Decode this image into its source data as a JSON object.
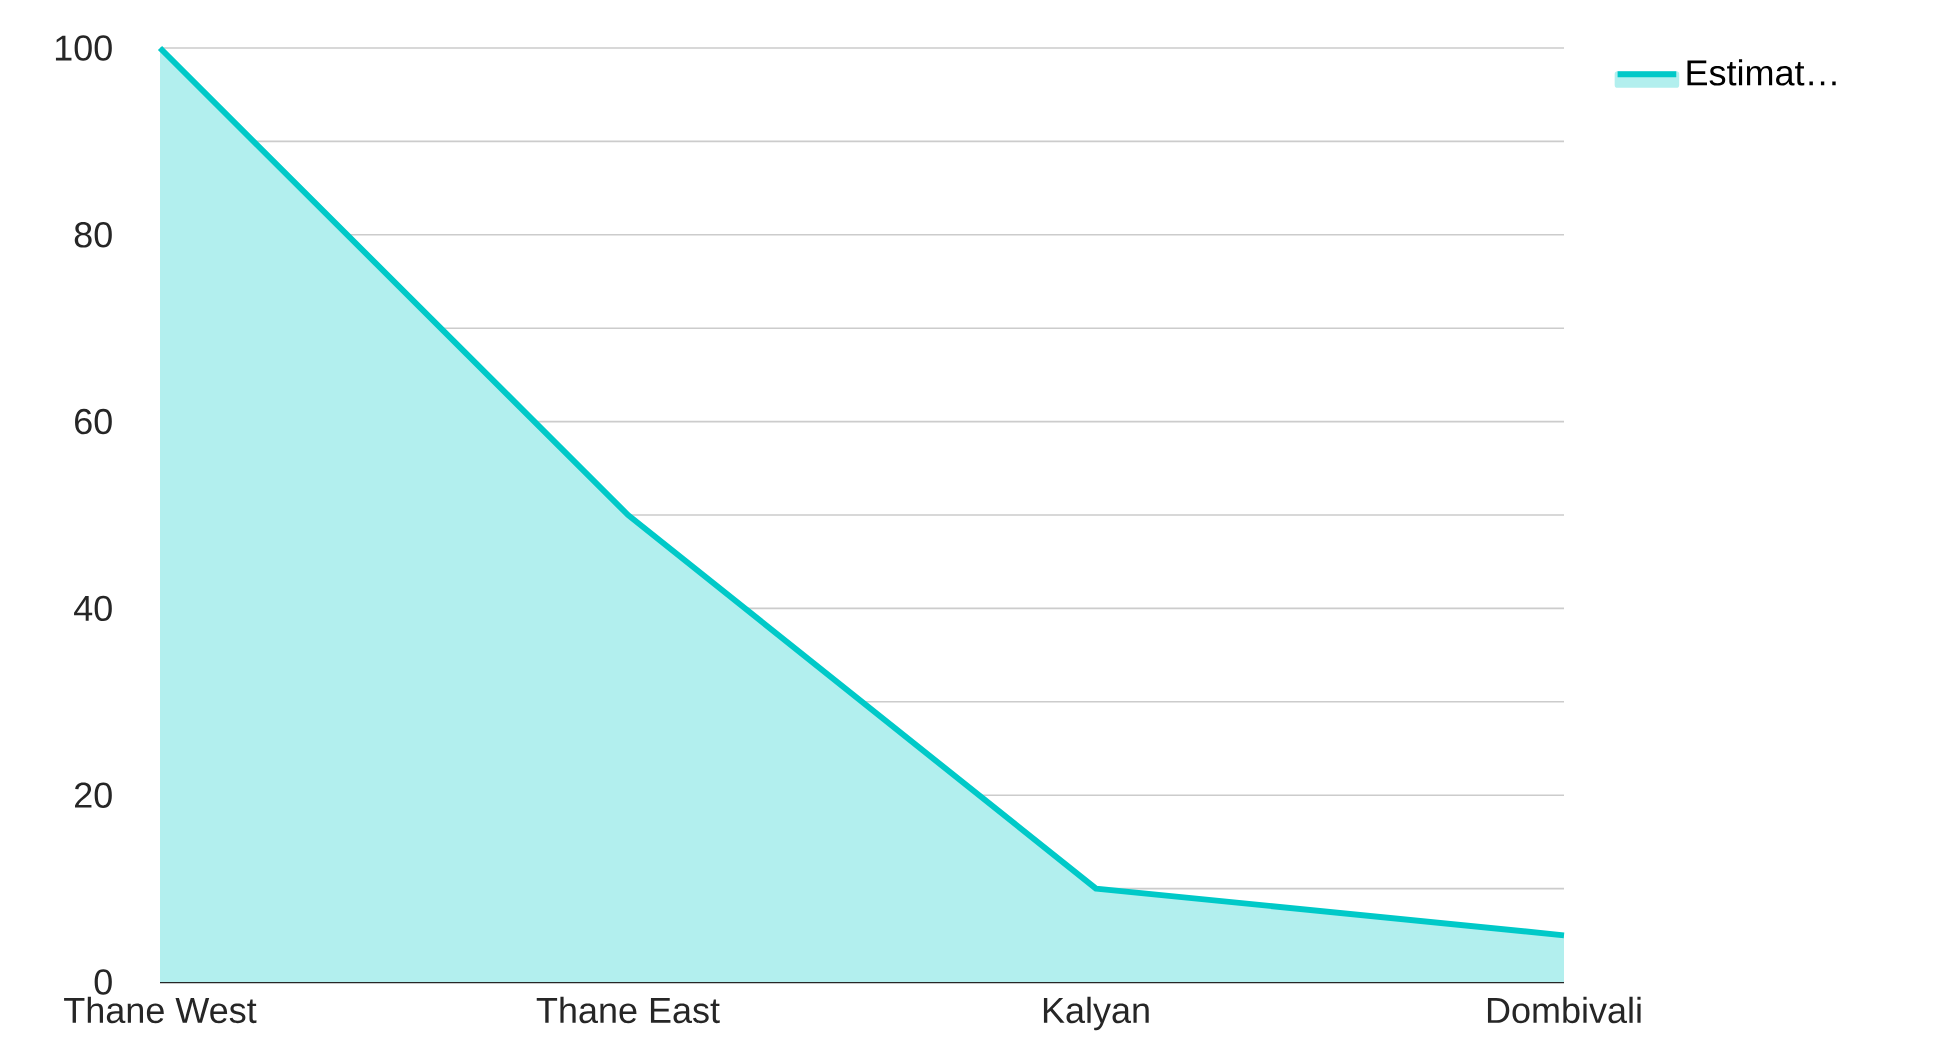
{
  "chart_data": {
    "type": "area",
    "categories": [
      "Thane West",
      "Thane East",
      "Kalyan",
      "Dombivali"
    ],
    "series": [
      {
        "name": "Estimat…",
        "color": "#00c9c8",
        "values": [
          100,
          50,
          10,
          5
        ]
      }
    ],
    "ylim": [
      0,
      100
    ],
    "yticks": [
      0,
      {
        "value": 10,
        "label": null
      },
      20,
      {
        "value": 30,
        "label": null
      },
      40,
      {
        "value": 50,
        "label": null
      },
      60,
      {
        "value": 70,
        "label": null
      },
      80,
      {
        "value": 90,
        "label": null
      },
      100
    ],
    "grid": "y",
    "legend": "top right"
  }
}
